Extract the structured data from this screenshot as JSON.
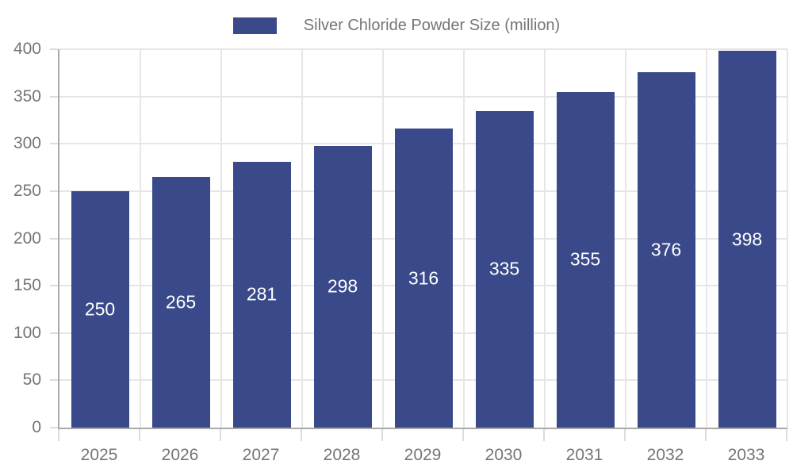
{
  "legend": {
    "label": "Silver Chloride Powder Size (million)"
  },
  "chart_data": {
    "type": "bar",
    "title": "",
    "xlabel": "",
    "ylabel": "",
    "legend_label": "Silver Chloride Powder Size (million)",
    "legend_position": "top-center",
    "categories": [
      "2025",
      "2026",
      "2027",
      "2028",
      "2029",
      "2030",
      "2031",
      "2032",
      "2033"
    ],
    "values": [
      250,
      265,
      281,
      298,
      316,
      335,
      355,
      376,
      398
    ],
    "ylim": [
      0,
      400
    ],
    "ytick_step": 50,
    "yticks": [
      0,
      50,
      100,
      150,
      200,
      250,
      300,
      350,
      400
    ],
    "grid": "on",
    "value_labels": "inside-center"
  },
  "colors": {
    "bar": "#39498a",
    "grid": "#e6e6e6",
    "axis": "#a9a9a9",
    "tick": "#dcdcdc",
    "tick_label": "#757575",
    "value_label": "#ffffff",
    "background": "#ffffff"
  }
}
